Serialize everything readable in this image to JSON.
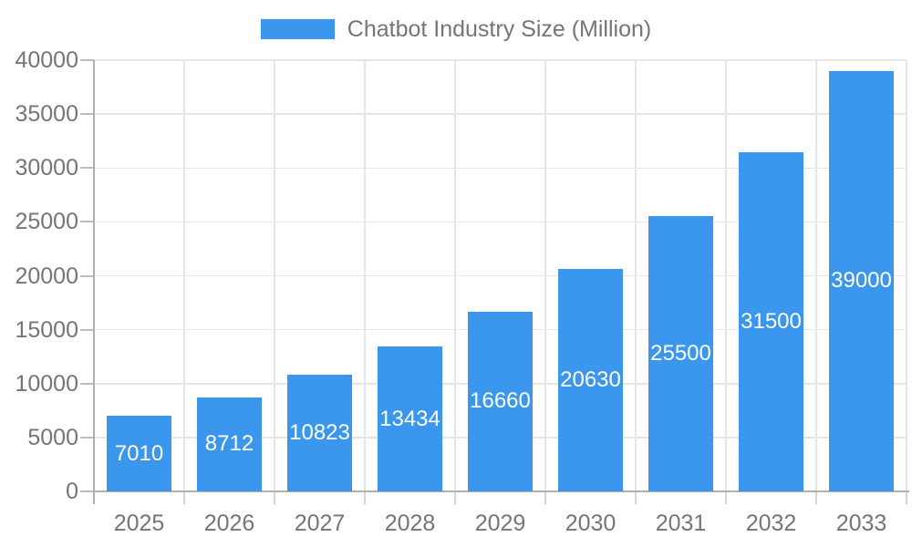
{
  "chart_data": {
    "type": "bar",
    "title": "",
    "legend_label": "Chatbot Industry Size (Million)",
    "legend_position": "top",
    "categories": [
      "2025",
      "2026",
      "2027",
      "2028",
      "2029",
      "2030",
      "2031",
      "2032",
      "2033"
    ],
    "series": [
      {
        "name": "Chatbot Industry Size (Million)",
        "values": [
          7010,
          8712,
          10823,
          13434,
          16660,
          20630,
          25500,
          31500,
          39000
        ]
      }
    ],
    "value_labels": [
      "7010",
      "8712",
      "10823",
      "13434",
      "16660",
      "20630",
      "25500",
      "31500",
      "39000"
    ],
    "value_label_position": "inside-center",
    "xlabel": "",
    "ylabel": "",
    "ylim": [
      0,
      40000
    ],
    "ytick_step": 5000,
    "ytick_labels": [
      "0",
      "5000",
      "10000",
      "15000",
      "20000",
      "25000",
      "30000",
      "35000",
      "40000"
    ],
    "grid": "both",
    "colors": {
      "bar": "#3B97ED",
      "value_label": "#FFFFFF",
      "axis_label": "#757575",
      "legend_text": "#757575",
      "gridline": "#E6E6E6",
      "axis_line": "#B0B0B0",
      "x_tick": "#D4D4D4",
      "y_tick": "#BDBDBD",
      "background": "#FFFFFF"
    }
  }
}
